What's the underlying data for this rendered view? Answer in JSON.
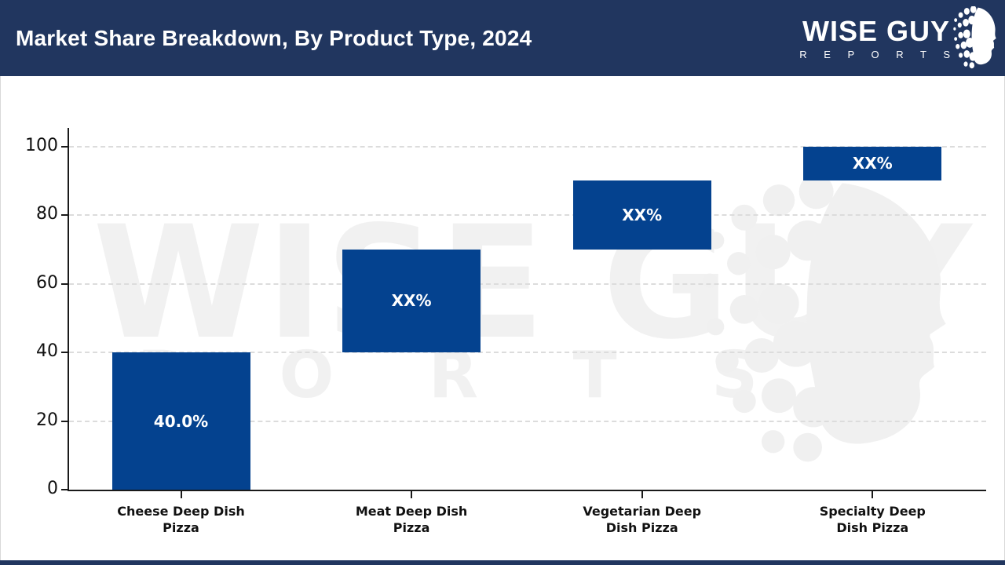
{
  "header": {
    "title": "Market Share Breakdown, By Product Type, 2024",
    "logo": {
      "name": "WISE GUY",
      "subname": "R E P O R T S",
      "head_icon": "dotted-face-profile"
    }
  },
  "watermark": {
    "line1": "WISE GUY",
    "line2": "P O R T S"
  },
  "chart_data": {
    "type": "bar",
    "subtype": "floating-segment-waterfall",
    "title": "Market Share Breakdown, By Product Type, 2024",
    "categories": [
      "Cheese Deep Dish\nPizza",
      "Meat Deep Dish\nPizza",
      "Vegetarian Deep\nDish Pizza",
      "Specialty Deep\nDish Pizza"
    ],
    "bars": [
      {
        "label": "40.0%",
        "start": 0,
        "end": 40
      },
      {
        "label": "XX%",
        "start": 40,
        "end": 70
      },
      {
        "label": "XX%",
        "start": 70,
        "end": 90
      },
      {
        "label": "XX%",
        "start": 90,
        "end": 100
      }
    ],
    "segment_sizes": [
      40,
      30,
      20,
      10
    ],
    "y_ticks": [
      0,
      20,
      40,
      60,
      80,
      100
    ],
    "ylim": [
      0,
      100
    ],
    "xlabel": "",
    "ylabel": "",
    "legend": "none",
    "grid": "horizontal-dashed",
    "colors": {
      "bar": "#04428f",
      "bar_label": "#ffffff",
      "axis": "#1a1a1a",
      "gridline": "#dcdcdc",
      "header_bg": "#21365f",
      "watermark": "#f1f1f1",
      "category_text": "#111111"
    }
  }
}
